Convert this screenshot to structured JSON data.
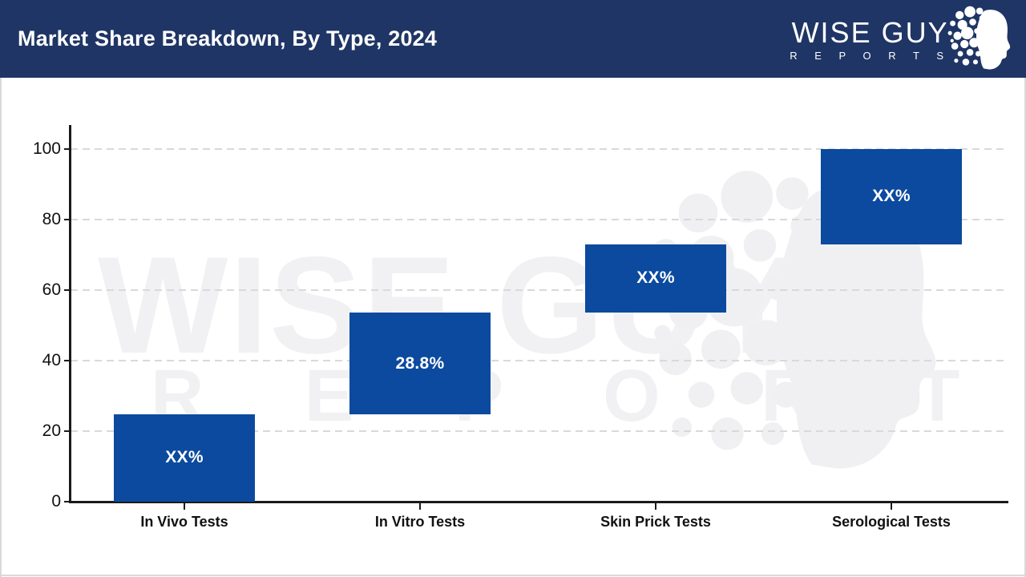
{
  "header": {
    "title": "Market Share Breakdown, By Type, 2024",
    "logo": {
      "line1": "WISE GUY",
      "line2": "R E P O R T S"
    }
  },
  "watermark": {
    "line1": "WISE GUY",
    "line2": "R E P O R T S"
  },
  "colors": {
    "header_bg": "#1f3565",
    "bar_blue": "#0b4a9e",
    "gridline": "#d9d9d9",
    "axis": "#1a1a1a",
    "bar_label": "#ffffff",
    "watermark": "#f1f1f3",
    "frame_border": "#d9d9d9"
  },
  "chart_data": {
    "type": "bar",
    "subtype": "waterfall",
    "title": "Market Share Breakdown, By Type, 2024",
    "categories": [
      "In Vivo Tests",
      "In Vitro Tests",
      "Skin Prick Tests",
      "Serological Tests"
    ],
    "segments": [
      {
        "category": "In Vivo Tests",
        "label": "XX%",
        "start": 0,
        "end": 24.8
      },
      {
        "category": "In Vitro Tests",
        "label": "28.8%",
        "start": 24.8,
        "end": 53.6
      },
      {
        "category": "Skin Prick Tests",
        "label": "XX%",
        "start": 53.6,
        "end": 73.0
      },
      {
        "category": "Serological Tests",
        "label": "XX%",
        "start": 73.0,
        "end": 100.0
      }
    ],
    "xlabel": "",
    "ylabel": "",
    "ylim": [
      0,
      100
    ],
    "yticks": [
      0,
      20,
      40,
      60,
      80,
      100
    ],
    "grid": "horizontal-dashed",
    "legend": false,
    "values_unit": "%"
  }
}
